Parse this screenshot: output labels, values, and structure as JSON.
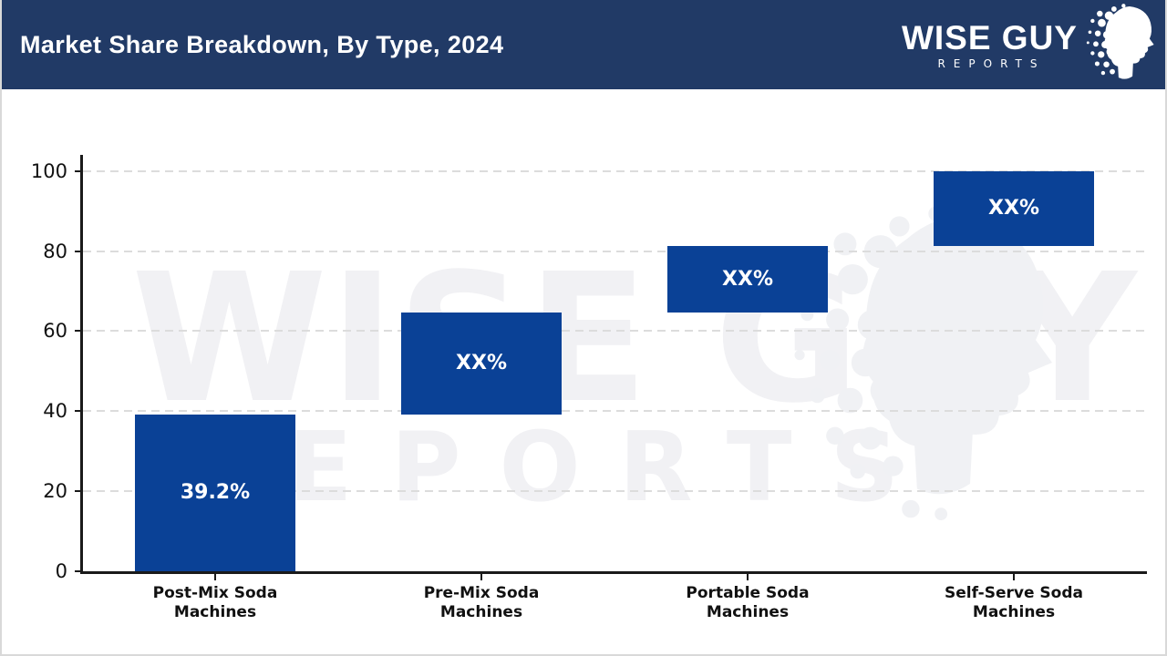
{
  "header": {
    "title": "Market Share Breakdown, By Type, 2024",
    "logo": {
      "name": "WISE GUY",
      "sub": "REPORTS",
      "icon": "wiseguy-face-icon"
    }
  },
  "watermark": {
    "line1": "WISE GUY",
    "line2": "REPORTS",
    "icon": "wiseguy-face-watermark-icon"
  },
  "chart_data": {
    "type": "bar",
    "subtype": "floating-waterfall-segments",
    "title": "Market Share Breakdown, By Type, 2024",
    "categories": [
      "Post-Mix Soda Machines",
      "Pre-Mix Soda Machines",
      "Portable Soda Machines",
      "Self-Serve Soda Machines"
    ],
    "category_label_lines": [
      [
        "Post-Mix Soda",
        "Machines"
      ],
      [
        "Pre-Mix Soda",
        "Machines"
      ],
      [
        "Portable Soda",
        "Machines"
      ],
      [
        "Self-Serve Soda",
        "Machines"
      ]
    ],
    "bars": [
      {
        "category": "Post-Mix Soda Machines",
        "start": 0,
        "end": 39.2,
        "label": "39.2%"
      },
      {
        "category": "Pre-Mix Soda Machines",
        "start": 39.2,
        "end": 64.7,
        "label": "XX%"
      },
      {
        "category": "Portable Soda Machines",
        "start": 64.7,
        "end": 81.3,
        "label": "XX%"
      },
      {
        "category": "Self-Serve Soda Machines",
        "start": 81.3,
        "end": 100,
        "label": "XX%"
      }
    ],
    "y_ticks": [
      0,
      20,
      40,
      60,
      80,
      100
    ],
    "ylim": [
      0,
      104
    ],
    "xlabel": "",
    "ylabel": "",
    "grid": "horizontal-dashed",
    "legend": "none"
  },
  "colors": {
    "header_bg": "#213a66",
    "bar": "#0a4196",
    "bar_label": "#ffffff",
    "grid": "#dcdcdc",
    "axis": "#1a1a1a",
    "watermark": "#f1f1f4",
    "title_text": "#ffffff"
  }
}
